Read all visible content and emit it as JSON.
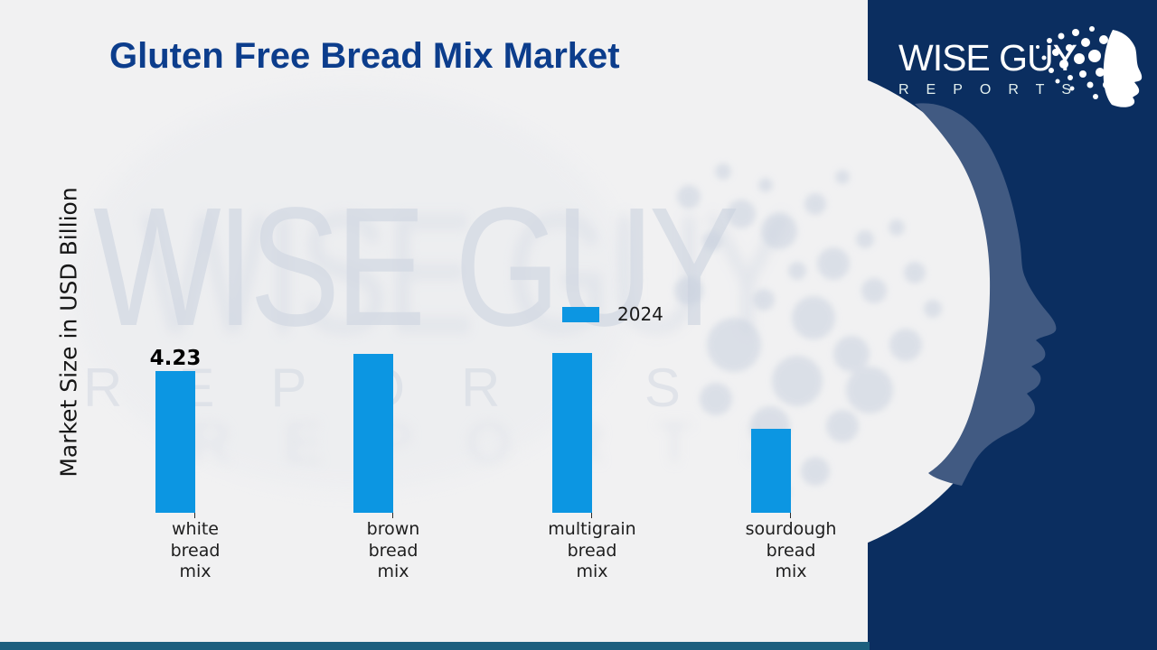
{
  "page": {
    "background_color": "#f1f1f2",
    "panel_color": "#0b2e60",
    "accent_bar_color": "#1d5f7e"
  },
  "header": {
    "title": "Gluten Free Bread Mix Market",
    "title_color": "#0c3d8c"
  },
  "brand": {
    "name": "WISE GUY",
    "subtext": "REPORTS"
  },
  "watermark": {
    "line1": "WISE GUY",
    "line2": "REPORTS"
  },
  "chart_data": {
    "type": "bar",
    "title": "Gluten Free Bread Mix Market",
    "ylabel": "Market Size in USD Billion",
    "xlabel": "",
    "categories": [
      "white bread mix",
      "brown bread mix",
      "multigrain bread mix",
      "sourdough bread mix"
    ],
    "values": [
      4.23,
      4.74,
      4.77,
      2.51
    ],
    "value_labels": [
      "4.23",
      "",
      "",
      ""
    ],
    "legend": {
      "label": "2024",
      "position": "top-center"
    },
    "bar_color": "#0c96e2",
    "ylim": [
      0,
      6
    ],
    "grid": false
  }
}
